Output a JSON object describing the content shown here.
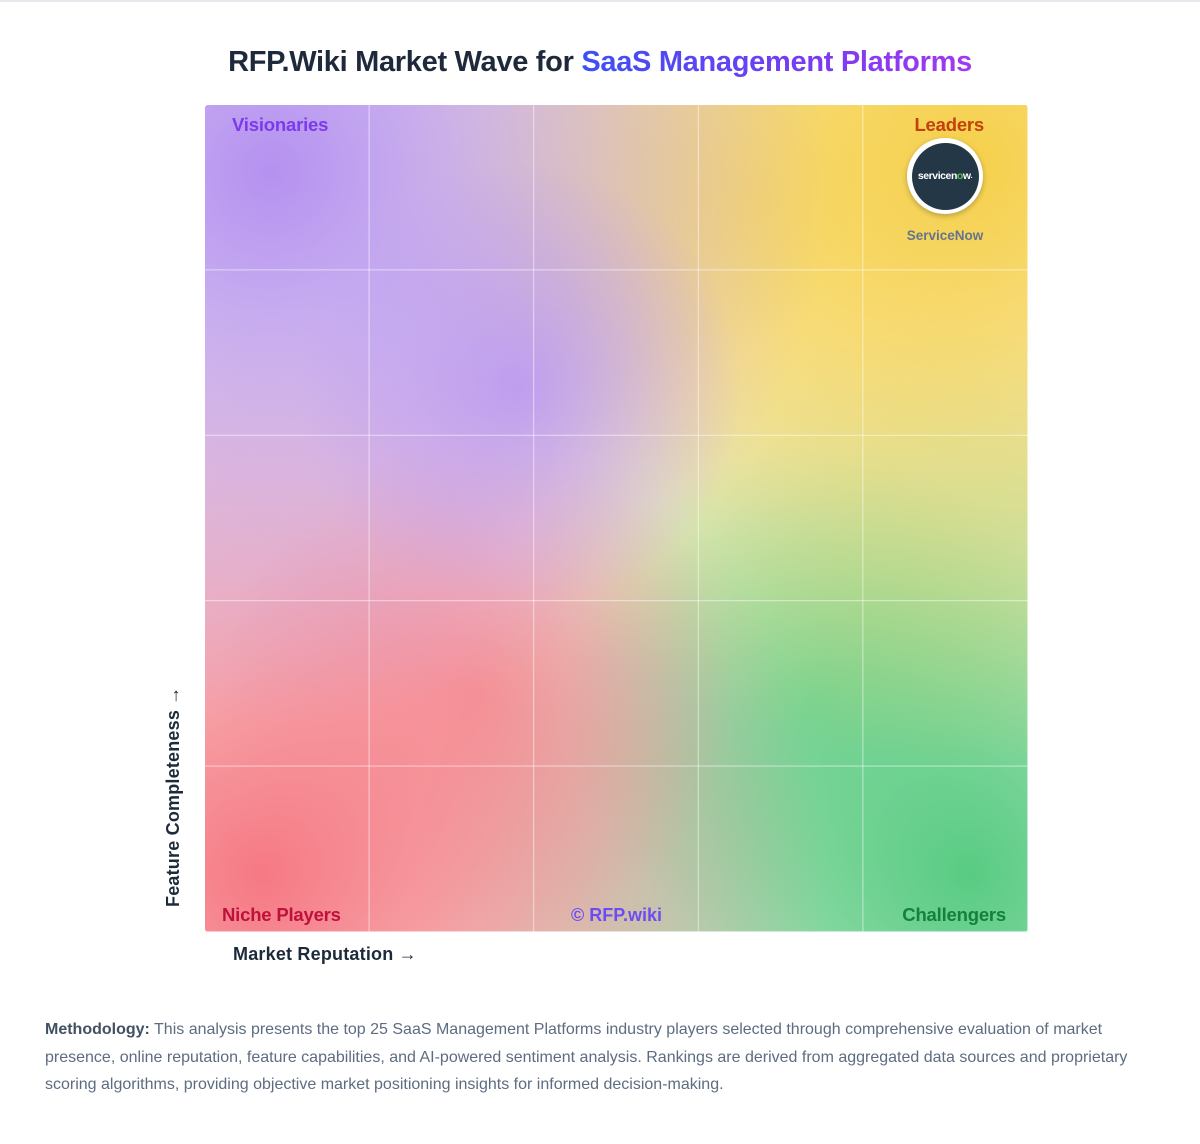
{
  "title": {
    "prefix": "RFP.Wiki Market Wave for",
    "highlight": "SaaS Management Platforms"
  },
  "chart_data": {
    "type": "scatter",
    "title": "RFP.Wiki Market Wave for SaaS Management Platforms",
    "xlabel": "Market Reputation →",
    "ylabel": "Feature Completeness →",
    "xlim": [
      0,
      100
    ],
    "ylim": [
      0,
      100
    ],
    "grid": true,
    "grid_divisions": 5,
    "legend_position": "none",
    "quadrants": {
      "top_left": "Visionaries",
      "top_right": "Leaders",
      "bottom_left": "Niche Players",
      "bottom_right": "Challengers"
    },
    "watermark": "© RFP.wiki",
    "points": [
      {
        "label": "ServiceNow",
        "x": 90,
        "y": 91
      }
    ]
  },
  "marker_logo": {
    "prefix": "servicen",
    "o": "o",
    "suffix": "w",
    "dot": "."
  },
  "methodology": {
    "label": "Methodology:",
    "text": "This analysis presents the top 25 SaaS Management Platforms industry players selected through comprehensive evaluation of market presence, online reputation, feature capabilities, and AI-powered sentiment analysis. Rankings are derived from aggregated data sources and proprietary scoring algorithms, providing objective market positioning insights for informed decision-making."
  },
  "colors": {
    "title_text": "#1e293b",
    "title_gradient_start": "#3c50f5",
    "title_gradient_end": "#a13af0",
    "visionaries_label": "#7c3aed",
    "leaders_label": "#c2410c",
    "niche_players_label": "#be123c",
    "challengers_label": "#15803d",
    "watermark": "#6d4df0",
    "quadrant_purple": "#b18cf0",
    "quadrant_yellow": "#f6cf46",
    "quadrant_red": "#f56e7b",
    "quadrant_green": "#4bc87a",
    "marker_navy": "#243747",
    "marker_logo_green_o": "#60c24a",
    "marker_label": "#64748b",
    "axis_label": "#1c2a3a",
    "methodology_text": "#5d6c80"
  }
}
